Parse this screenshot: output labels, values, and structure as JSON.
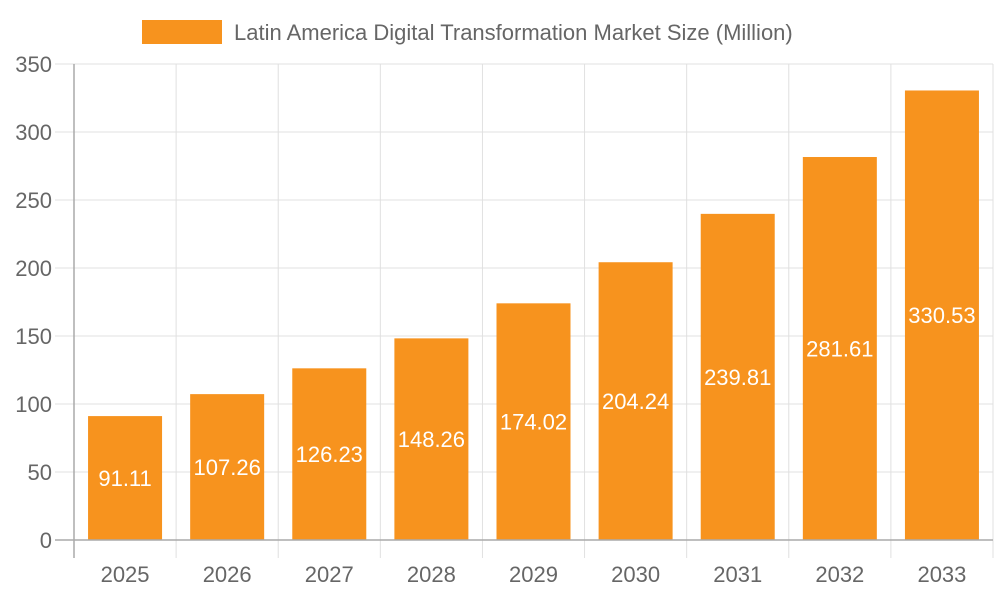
{
  "chart_data": {
    "type": "bar",
    "title": "",
    "xlabel": "",
    "ylabel": "",
    "categories": [
      "2025",
      "2026",
      "2027",
      "2028",
      "2029",
      "2030",
      "2031",
      "2032",
      "2033"
    ],
    "series": [
      {
        "name": "Latin America Digital Transformation Market Size (Million)",
        "values": [
          91.11,
          107.26,
          126.23,
          148.26,
          174.02,
          204.24,
          239.81,
          281.61,
          330.53
        ]
      }
    ],
    "ylim": [
      0,
      350
    ],
    "yticks": [
      0,
      50,
      100,
      150,
      200,
      250,
      300,
      350
    ],
    "grid": true,
    "legend_position": "top",
    "data_labels": true,
    "colors": {
      "bar": "#F7931E",
      "label": "#ffffff",
      "tick": "#666666",
      "grid": "#e0e0e0",
      "axis": "#aaaaaa"
    }
  }
}
